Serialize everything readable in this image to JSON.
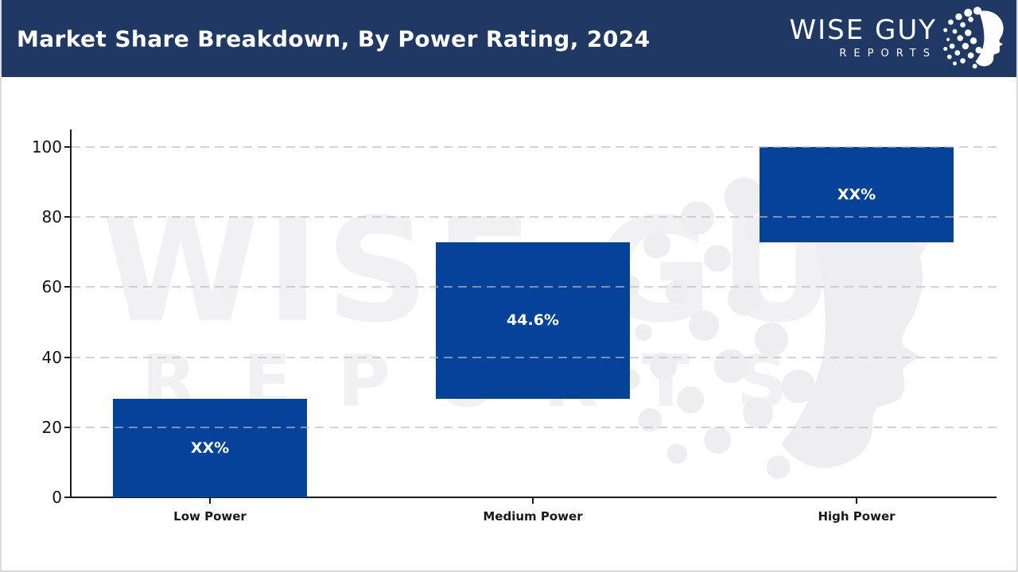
{
  "header": {
    "title": "Market Share Breakdown, By Power Rating, 2024",
    "logo": {
      "line1": "WISE GUY",
      "line2": "REPORTS"
    }
  },
  "watermark": {
    "line1": "WISE GUY",
    "line2": "REPORTS"
  },
  "colors": {
    "header_bg": "#1f3864",
    "bar": "#05429a",
    "axis": "#1a1a1a",
    "gridline": "#bbbbbd",
    "watermark": "#f1f1f3",
    "value_label": "#ffffff"
  },
  "chart_data": {
    "type": "bar",
    "subtype": "waterfall-floating-segments",
    "title": "Market Share Breakdown, By Power Rating, 2024",
    "categories": [
      "Low Power",
      "Medium Power",
      "High Power"
    ],
    "segments": [
      {
        "category": "Low Power",
        "start": 0,
        "end": 28.2,
        "value_label": "XX%"
      },
      {
        "category": "Medium Power",
        "start": 28.2,
        "end": 72.8,
        "value_label": "44.6%"
      },
      {
        "category": "High Power",
        "start": 72.8,
        "end": 100,
        "value_label": "XX%"
      }
    ],
    "xlabel": "",
    "ylabel": "",
    "yticks": [
      0,
      20,
      40,
      60,
      80,
      100
    ],
    "ylim": [
      0,
      105
    ],
    "grid": "horizontal-dashed",
    "legend": "none",
    "bar_color": "#05429a",
    "value_label_color": "#ffffff"
  }
}
